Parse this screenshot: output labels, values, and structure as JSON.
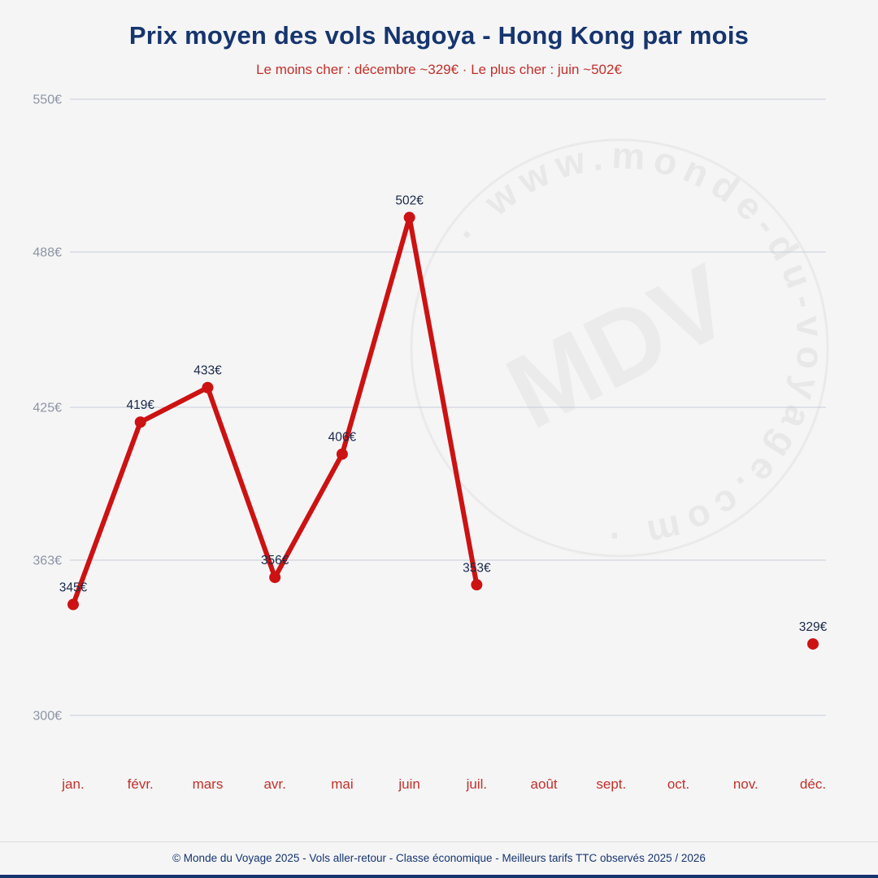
{
  "header": {
    "title": "Prix moyen des vols Nagoya - Hong Kong par mois",
    "subtitle": "Le moins cher : décembre ~329€ · Le plus cher : juin ~502€"
  },
  "watermark": {
    "text": "· www.monde-du-voyage.com ·",
    "center": "MDV"
  },
  "footer": {
    "text": "© Monde du Voyage 2025 - Vols aller-retour - Classe économique - Meilleurs tarifs TTC observés 2025 / 2026"
  },
  "colors": {
    "bg": "#f5f5f6",
    "navy": "#16356e",
    "label_navy": "#1b2949",
    "red_text": "#c23029",
    "line": "#cc1212",
    "grid": "#c6cdd8",
    "tick_gray": "#8d95a3"
  },
  "chart_data": {
    "type": "line",
    "title": "Prix moyen des vols Nagoya - Hong Kong par mois",
    "categories": [
      "jan.",
      "févr.",
      "mars",
      "avr.",
      "mai",
      "juin",
      "juil.",
      "août",
      "sept.",
      "oct.",
      "nov.",
      "déc."
    ],
    "values": [
      345,
      419,
      433,
      356,
      406,
      502,
      353,
      null,
      null,
      null,
      null,
      329
    ],
    "unit": "€",
    "ylim": [
      300,
      550
    ],
    "yticks": [
      300,
      363,
      425,
      488,
      550
    ],
    "grid": true,
    "legend": "none",
    "min_month": "décembre",
    "min_value": 329,
    "max_month": "juin",
    "max_value": 502
  }
}
